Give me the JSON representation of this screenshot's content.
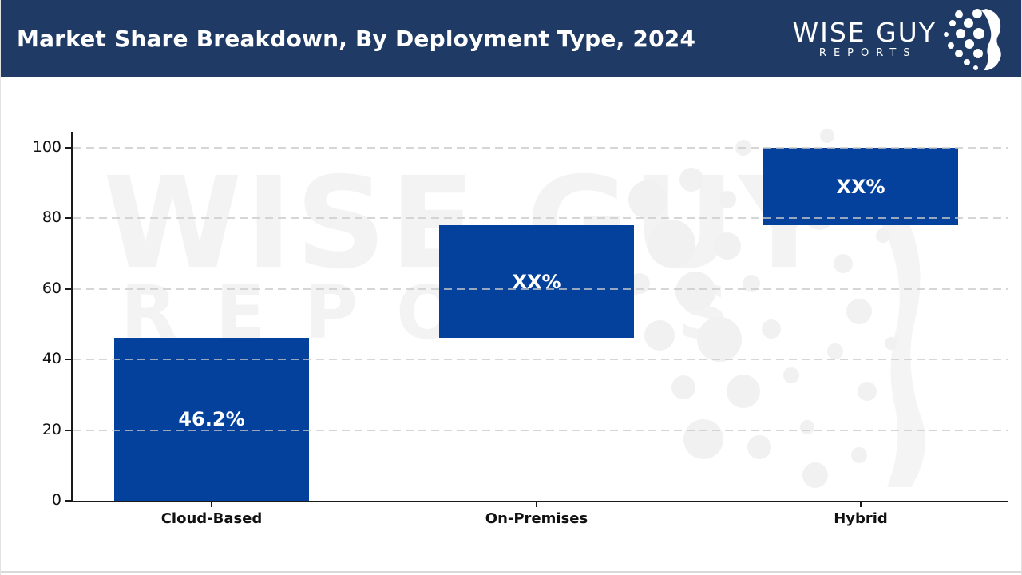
{
  "header": {
    "title": "Market Share Breakdown, By Deployment Type, 2024"
  },
  "logo": {
    "name": "WISE GUY",
    "sub": "REPORTS",
    "face_icon": "dotted-head-profile"
  },
  "watermark": {
    "line1": "WISE GUY",
    "line2": "REPORTS"
  },
  "colors": {
    "header_bg": "#1F3A64",
    "bar": "#04419C",
    "axis": "#1a1a1a",
    "grid": "#c9c9c9",
    "watermark": "#f3f3f3",
    "bar_label": "#ffffff"
  },
  "chart_data": {
    "type": "bar",
    "subtype": "waterfall-floating-bars",
    "title": "Market Share Breakdown, By Deployment Type, 2024",
    "categories": [
      "Cloud-Based",
      "On-Premises",
      "Hybrid"
    ],
    "segments": [
      {
        "category": "Cloud-Based",
        "from": 0,
        "to": 46.2,
        "label": "46.2%"
      },
      {
        "category": "On-Premises",
        "from": 46.2,
        "to": 78,
        "label": "XX%"
      },
      {
        "category": "Hybrid",
        "from": 78,
        "to": 100,
        "label": "XX%"
      }
    ],
    "yticks": [
      0,
      20,
      40,
      60,
      80,
      100
    ],
    "ylim": [
      0,
      105
    ],
    "xlabel": "",
    "ylabel": "",
    "grid": "horizontal dashed",
    "legend": "none",
    "bar_color": "#04419C"
  }
}
